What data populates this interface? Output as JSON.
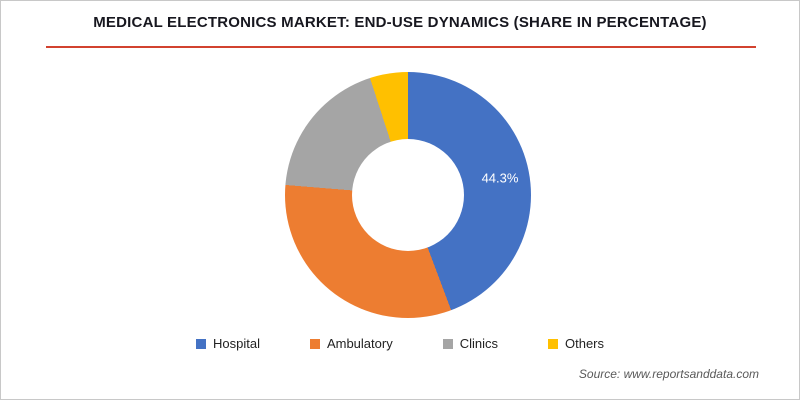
{
  "title": "MEDICAL ELECTRONICS MARKET: END-USE DYNAMICS (SHARE IN PERCENTAGE)",
  "accent_color": "#d2422f",
  "source": "Source: www.reportsanddata.com",
  "chart_data": {
    "type": "pie",
    "subtype": "donut",
    "title": "MEDICAL ELECTRONICS MARKET: END-USE DYNAMICS (SHARE IN PERCENTAGE)",
    "categories": [
      "Hospital",
      "Ambulatory",
      "Clinics",
      "Others"
    ],
    "values": [
      44.3,
      32.0,
      18.7,
      5.0
    ],
    "colors": [
      "#4472C4",
      "#ED7D31",
      "#A5A5A5",
      "#FFC000"
    ],
    "data_labels": [
      "44.3%",
      "",
      "",
      ""
    ],
    "start_angle_deg": 0,
    "direction": "clockwise",
    "hole_ratio": 0.455,
    "legend_position": "bottom",
    "grid": false
  }
}
